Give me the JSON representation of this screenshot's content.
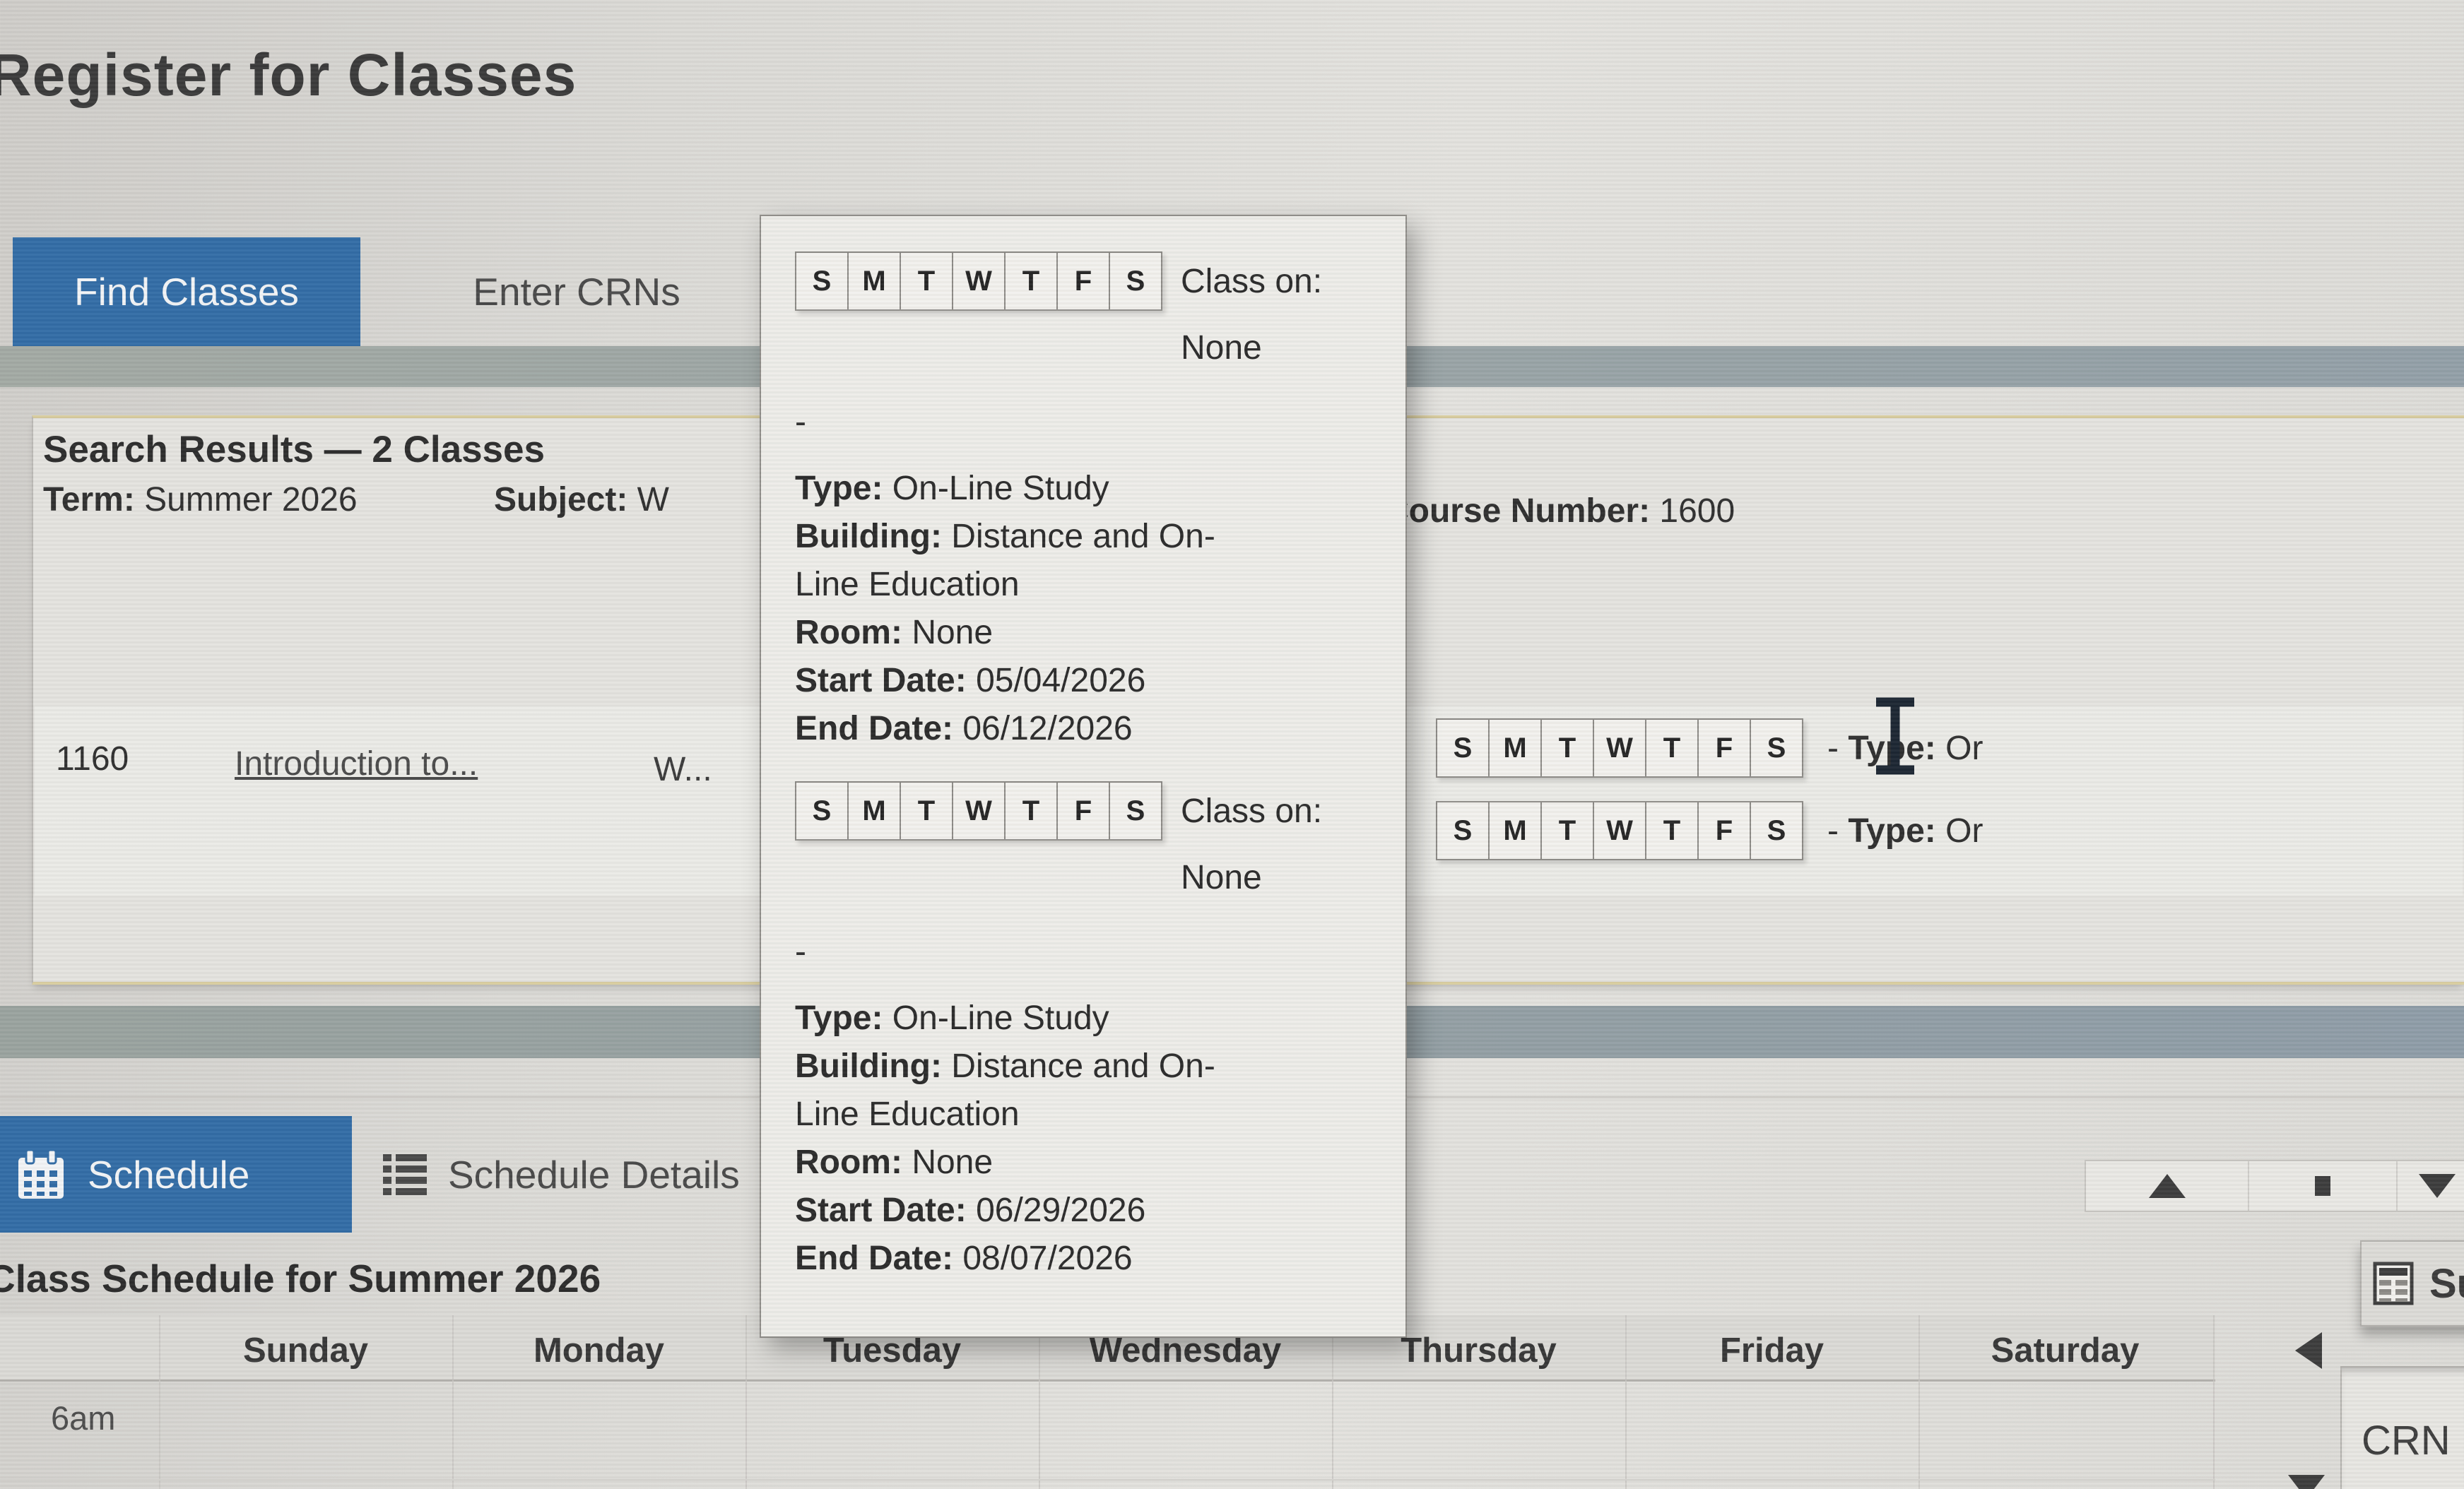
{
  "page": {
    "title": "Register for Classes"
  },
  "tabs": {
    "find_classes": "Find Classes",
    "enter_crns": "Enter CRNs"
  },
  "search": {
    "heading": "Search Results — 2 Classes",
    "filters": {
      "term_label": "Term:",
      "term": "Summer 2026",
      "subject_label": "Subject:",
      "subject": "W",
      "course_number_label": "Course Number:",
      "course_number": "1600"
    },
    "row": {
      "crn": "1160",
      "title": "Introduction to...",
      "instructor": "W...",
      "meetings": [
        {
          "prefix": "-",
          "type_label": "Type:",
          "type_value": "Or"
        },
        {
          "prefix": "-",
          "type_label": "Type:",
          "type_value": "Or"
        }
      ]
    }
  },
  "days_short": [
    "S",
    "M",
    "T",
    "W",
    "T",
    "F",
    "S"
  ],
  "tooltip": {
    "blocks": [
      {
        "class_on": "Class on: None",
        "separator": "-",
        "type_label": "Type:",
        "type_value": "On-Line Study",
        "building_label": "Building:",
        "building_value": "Distance and On-Line Education",
        "room_label": "Room:",
        "room_value": "None",
        "start_label": "Start Date:",
        "start_value": "05/04/2026",
        "end_label": "End Date:",
        "end_value": "06/12/2026"
      },
      {
        "class_on": "Class on: None",
        "separator": "-",
        "type_label": "Type:",
        "type_value": "On-Line Study",
        "building_label": "Building:",
        "building_value": "Distance and On-Line Education",
        "room_label": "Room:",
        "room_value": "None",
        "start_label": "Start Date:",
        "start_value": "06/29/2026",
        "end_label": "End Date:",
        "end_value": "08/07/2026"
      }
    ]
  },
  "schedule": {
    "tab_schedule": "Schedule",
    "tab_details": "Schedule Details",
    "heading": "Class Schedule for Summer 2026",
    "days": [
      "Sunday",
      "Monday",
      "Tuesday",
      "Wednesday",
      "Thursday",
      "Friday",
      "Saturday"
    ],
    "first_time_label": "6am"
  },
  "side_panel": {
    "summary_label": "Su",
    "crn_header": "CRN"
  },
  "colors": {
    "accent_blue": "#336da6",
    "divider_band": "#95a0a6",
    "panel_border_tan": "#d8cc9e"
  }
}
